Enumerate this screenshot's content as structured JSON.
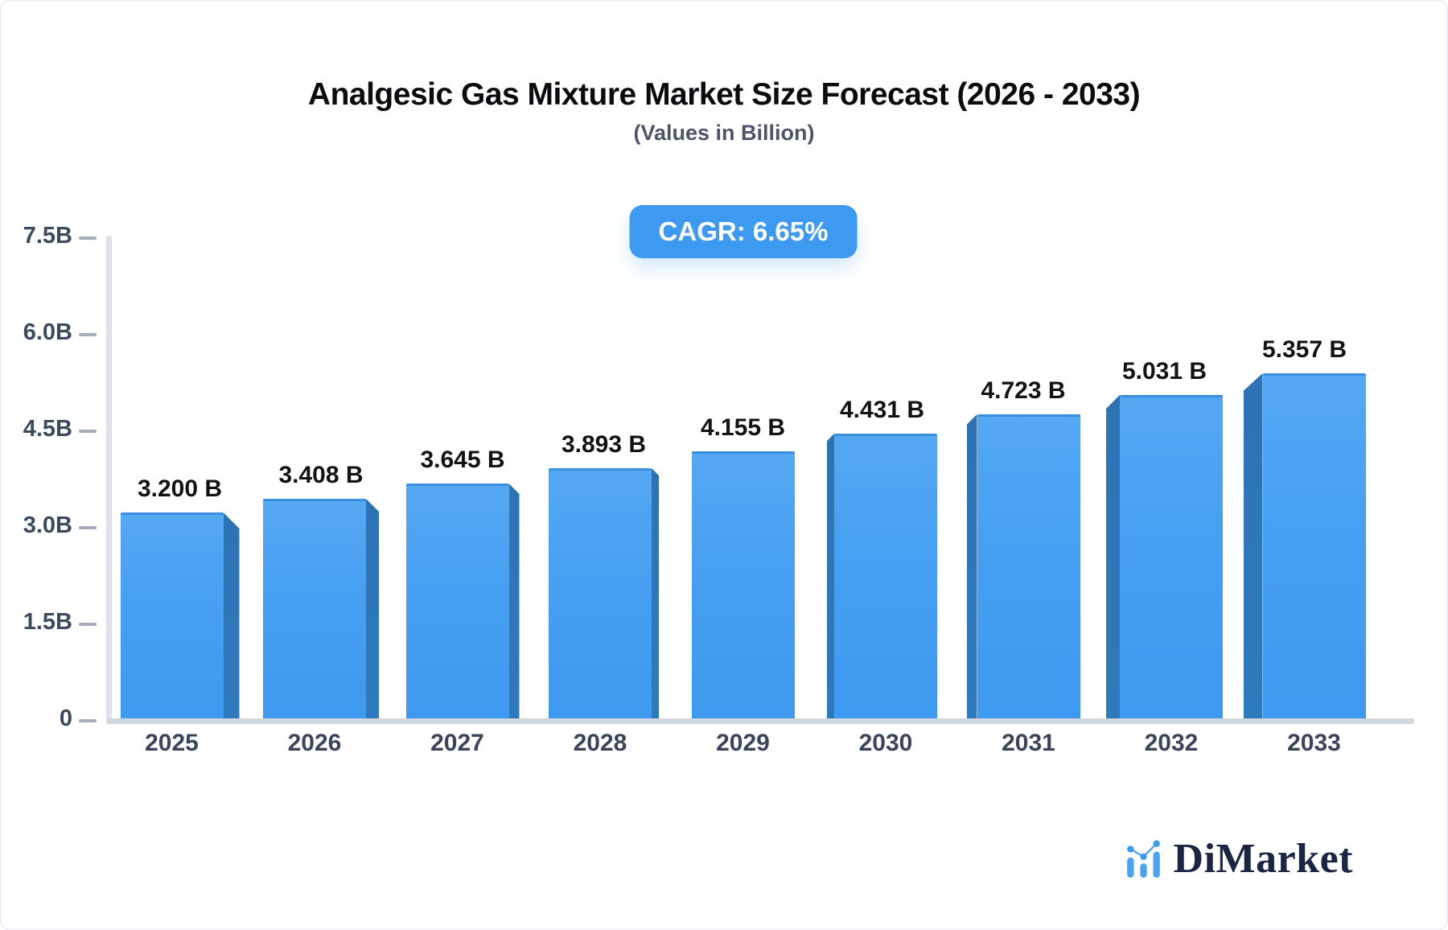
{
  "title": "Analgesic Gas Mixture Market Size Forecast (2026 - 2033)",
  "subtitle": "(Values in Billion)",
  "cagr_label": "CAGR: 6.65%",
  "brand": {
    "name": "DiMarket"
  },
  "colors": {
    "accent": "#3d9af0",
    "bar_face_top": "#55a8f2",
    "bar_face_bottom": "#3e99f0",
    "bar_side": "#2e76b8",
    "axis_line": "#dde1e8",
    "tick": "#a6adb8",
    "axis_text": "#3d4a5c",
    "title_text": "#0a0c0f",
    "subtitle_text": "#4d5666",
    "brand_navy": "#1b2742"
  },
  "chart_data": {
    "type": "bar",
    "effect": "3d-perspective",
    "title": "Analgesic Gas Mixture Market Size Forecast (2026 - 2033)",
    "subtitle": "(Values in Billion)",
    "xlabel": "",
    "ylabel": "",
    "grid": false,
    "legend": false,
    "ylim": [
      0,
      7.5
    ],
    "categories": [
      "2025",
      "2026",
      "2027",
      "2028",
      "2029",
      "2030",
      "2031",
      "2032",
      "2033"
    ],
    "values": [
      3.2,
      3.408,
      3.645,
      3.893,
      4.155,
      4.431,
      4.723,
      5.031,
      5.357
    ],
    "value_labels": [
      "3.200 B",
      "3.408 B",
      "3.645 B",
      "3.893 B",
      "4.155 B",
      "4.431 B",
      "4.723 B",
      "5.031 B",
      "5.357 B"
    ],
    "yticks": [
      {
        "label": "7.5B",
        "value": 7.5
      },
      {
        "label": "6.0B",
        "value": 6.0
      },
      {
        "label": "4.5B",
        "value": 4.5
      },
      {
        "label": "3.0B",
        "value": 3.0
      },
      {
        "label": "1.5B",
        "value": 1.5
      },
      {
        "label": "0",
        "value": 0.0
      }
    ]
  }
}
